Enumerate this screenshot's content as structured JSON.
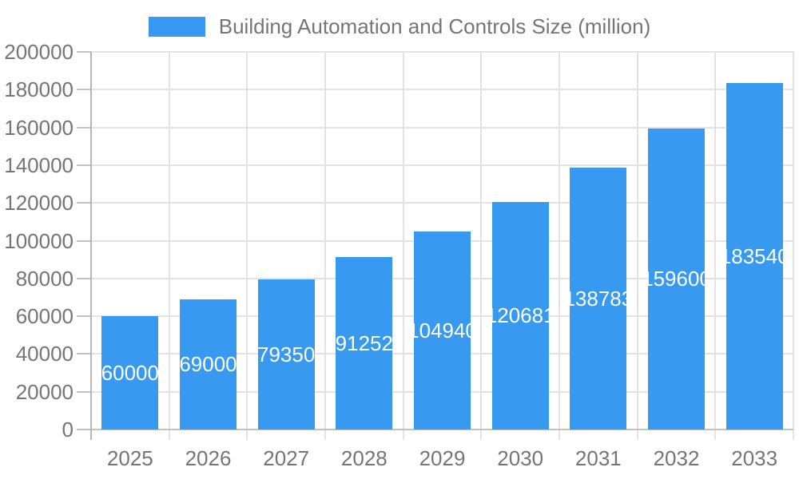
{
  "chart_data": {
    "type": "bar",
    "title": "Building Automation and Controls Size (million)",
    "legend_position": "top",
    "categories": [
      "2025",
      "2026",
      "2027",
      "2028",
      "2029",
      "2030",
      "2031",
      "2032",
      "2033"
    ],
    "values": [
      60000,
      69000,
      79350,
      91252,
      104940,
      120681,
      138783,
      159600,
      183540
    ],
    "xlabel": "",
    "ylabel": "",
    "ylim": [
      0,
      200000
    ],
    "ytick_step": 20000,
    "grid": true,
    "colors": {
      "bar": "#3899F0",
      "bar_label": "#FFFFFF",
      "gridline": "#E3E3E3",
      "axis_line": "#B5B5B5",
      "tick": "#C2C2C2",
      "text": "#757575"
    }
  }
}
